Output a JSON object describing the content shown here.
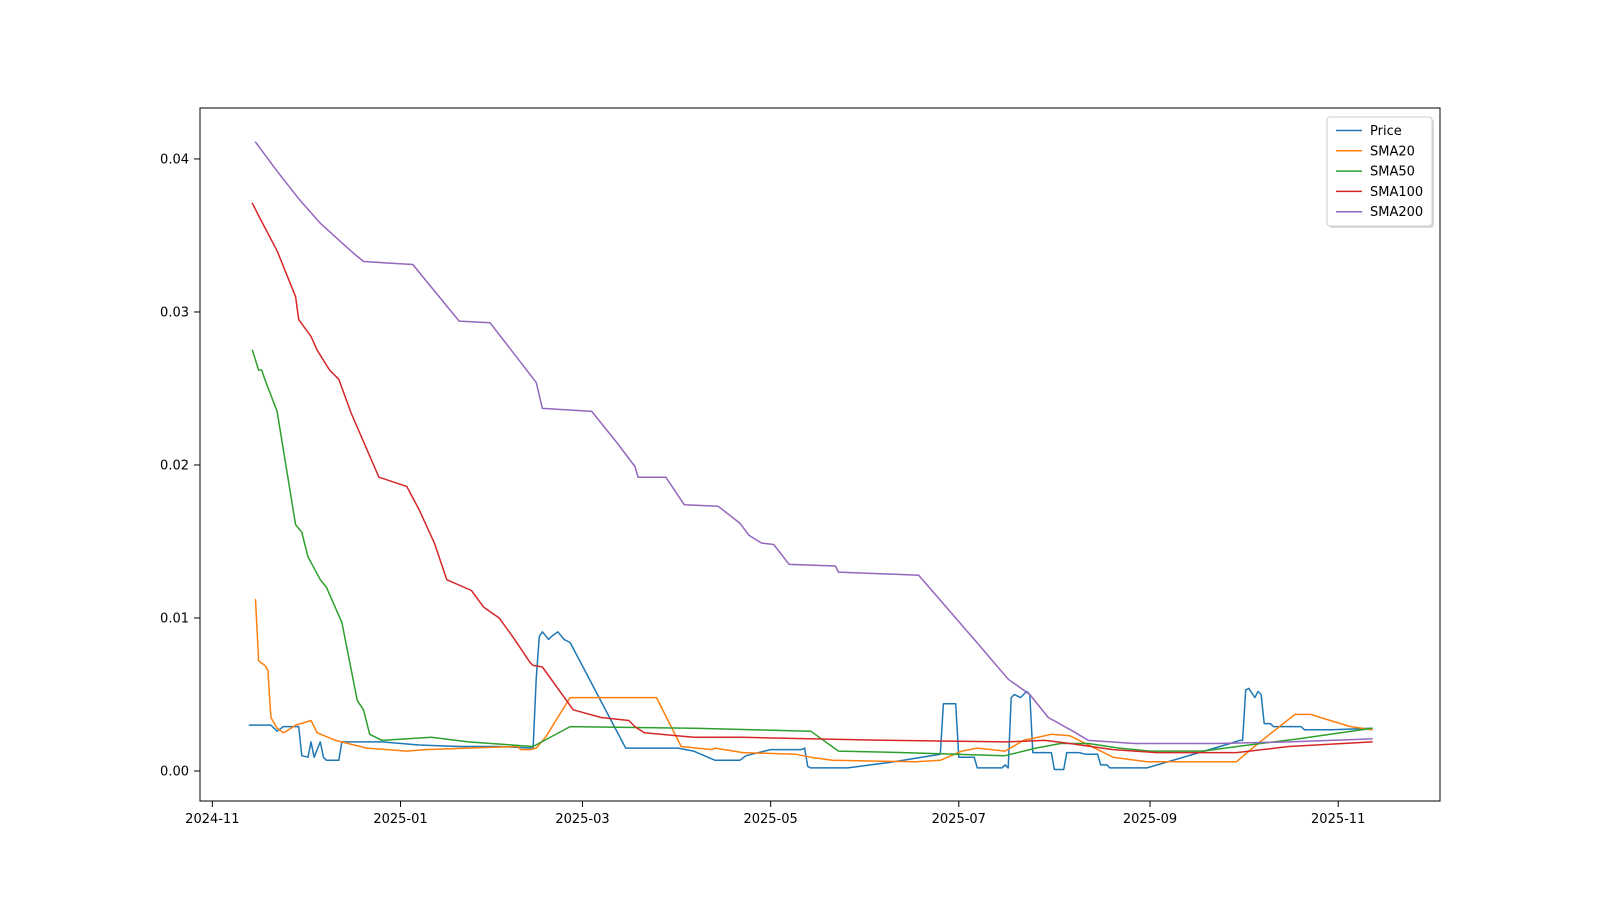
{
  "chart_data": {
    "type": "line",
    "title": "",
    "xlabel": "",
    "ylabel": "",
    "grid": false,
    "legend_position": "upper right",
    "x_axis": {
      "range": [
        "2024-10-28",
        "2025-12-04"
      ],
      "ticks": [
        {
          "date": "2024-11-01",
          "label": "2024-11"
        },
        {
          "date": "2025-01-01",
          "label": "2025-01"
        },
        {
          "date": "2025-03-01",
          "label": "2025-03"
        },
        {
          "date": "2025-05-01",
          "label": "2025-05"
        },
        {
          "date": "2025-07-01",
          "label": "2025-07"
        },
        {
          "date": "2025-09-01",
          "label": "2025-09"
        },
        {
          "date": "2025-11-01",
          "label": "2025-11"
        }
      ]
    },
    "y_axis": {
      "range": [
        -0.00196,
        0.04333
      ],
      "ticks": [
        {
          "value": 0.0,
          "label": "0.00"
        },
        {
          "value": 0.01,
          "label": "0.01"
        },
        {
          "value": 0.02,
          "label": "0.02"
        },
        {
          "value": 0.03,
          "label": "0.03"
        },
        {
          "value": 0.04,
          "label": "0.04"
        }
      ]
    },
    "series": [
      {
        "name": "Price",
        "color": "#1f77b4",
        "points": [
          [
            "2024-11-13",
            0.003
          ],
          [
            "2024-11-20",
            0.003
          ],
          [
            "2024-11-22",
            0.0026
          ],
          [
            "2024-11-24",
            0.0029
          ],
          [
            "2024-11-29",
            0.0029
          ],
          [
            "2024-11-30",
            0.001
          ],
          [
            "2024-12-02",
            0.0009
          ],
          [
            "2024-12-03",
            0.0019
          ],
          [
            "2024-12-04",
            0.0009
          ],
          [
            "2024-12-06",
            0.0019
          ],
          [
            "2024-12-07",
            0.0009
          ],
          [
            "2024-12-08",
            0.0007
          ],
          [
            "2024-12-12",
            0.0007
          ],
          [
            "2024-12-13",
            0.0019
          ],
          [
            "2024-12-26",
            0.0019
          ],
          [
            "2025-01-07",
            0.0017
          ],
          [
            "2025-01-20",
            0.0016
          ],
          [
            "2025-02-02",
            0.0016
          ],
          [
            "2025-02-13",
            0.0015
          ],
          [
            "2025-02-14",
            0.006
          ],
          [
            "2025-02-15",
            0.0088
          ],
          [
            "2025-02-16",
            0.0091
          ],
          [
            "2025-02-18",
            0.0086
          ],
          [
            "2025-02-19",
            0.0088
          ],
          [
            "2025-02-21",
            0.0091
          ],
          [
            "2025-02-23",
            0.0086
          ],
          [
            "2025-02-25",
            0.0084
          ],
          [
            "2025-03-15",
            0.0015
          ],
          [
            "2025-04-01",
            0.0015
          ],
          [
            "2025-04-06",
            0.0013
          ],
          [
            "2025-04-13",
            0.0007
          ],
          [
            "2025-04-21",
            0.0007
          ],
          [
            "2025-04-23",
            0.001
          ],
          [
            "2025-05-01",
            0.0014
          ],
          [
            "2025-05-11",
            0.0014
          ],
          [
            "2025-05-12",
            0.0015
          ],
          [
            "2025-05-13",
            0.0003
          ],
          [
            "2025-05-14",
            0.0002
          ],
          [
            "2025-05-26",
            0.0002
          ],
          [
            "2025-06-10",
            0.0006
          ],
          [
            "2025-06-25",
            0.0011
          ],
          [
            "2025-06-26",
            0.0044
          ],
          [
            "2025-06-30",
            0.0044
          ],
          [
            "2025-07-01",
            0.0009
          ],
          [
            "2025-07-06",
            0.0009
          ],
          [
            "2025-07-07",
            0.0002
          ],
          [
            "2025-07-15",
            0.0002
          ],
          [
            "2025-07-16",
            0.0004
          ],
          [
            "2025-07-17",
            0.0002
          ],
          [
            "2025-07-18",
            0.0048
          ],
          [
            "2025-07-19",
            0.005
          ],
          [
            "2025-07-21",
            0.0048
          ],
          [
            "2025-07-23",
            0.0052
          ],
          [
            "2025-07-24",
            0.005
          ],
          [
            "2025-07-25",
            0.0012
          ],
          [
            "2025-07-31",
            0.0012
          ],
          [
            "2025-08-01",
            0.0001
          ],
          [
            "2025-08-04",
            0.0001
          ],
          [
            "2025-08-05",
            0.0012
          ],
          [
            "2025-08-09",
            0.0012
          ],
          [
            "2025-08-11",
            0.0011
          ],
          [
            "2025-08-15",
            0.0011
          ],
          [
            "2025-08-16",
            0.0004
          ],
          [
            "2025-08-18",
            0.0004
          ],
          [
            "2025-08-19",
            0.0002
          ],
          [
            "2025-08-31",
            0.0002
          ],
          [
            "2025-09-27",
            0.0018
          ],
          [
            "2025-09-30",
            0.002
          ],
          [
            "2025-10-01",
            0.002
          ],
          [
            "2025-10-02",
            0.0053
          ],
          [
            "2025-10-03",
            0.0054
          ],
          [
            "2025-10-05",
            0.0048
          ],
          [
            "2025-10-06",
            0.0052
          ],
          [
            "2025-10-07",
            0.005
          ],
          [
            "2025-10-08",
            0.0031
          ],
          [
            "2025-10-10",
            0.0031
          ],
          [
            "2025-10-11",
            0.0029
          ],
          [
            "2025-10-20",
            0.0029
          ],
          [
            "2025-10-21",
            0.0027
          ],
          [
            "2025-10-30",
            0.0027
          ],
          [
            "2025-11-12",
            0.0028
          ]
        ]
      },
      {
        "name": "SMA20",
        "color": "#ff7f0e",
        "points": [
          [
            "2024-11-15",
            0.0112
          ],
          [
            "2024-11-16",
            0.0072
          ],
          [
            "2024-11-18",
            0.0069
          ],
          [
            "2024-11-19",
            0.0066
          ],
          [
            "2024-11-20",
            0.0035
          ],
          [
            "2024-11-22",
            0.0028
          ],
          [
            "2024-11-24",
            0.0025
          ],
          [
            "2024-11-25",
            0.0026
          ],
          [
            "2024-11-28",
            0.003
          ],
          [
            "2024-12-03",
            0.0033
          ],
          [
            "2024-12-05",
            0.0025
          ],
          [
            "2024-12-11",
            0.002
          ],
          [
            "2024-12-21",
            0.0015
          ],
          [
            "2025-01-03",
            0.0013
          ],
          [
            "2025-01-09",
            0.0014
          ],
          [
            "2025-01-23",
            0.0015
          ],
          [
            "2025-02-08",
            0.0016
          ],
          [
            "2025-02-09",
            0.0014
          ],
          [
            "2025-02-12",
            0.0014
          ],
          [
            "2025-02-14",
            0.0015
          ],
          [
            "2025-02-17",
            0.0022
          ],
          [
            "2025-02-25",
            0.0048
          ],
          [
            "2025-03-25",
            0.0048
          ],
          [
            "2025-04-02",
            0.0016
          ],
          [
            "2025-04-12",
            0.0014
          ],
          [
            "2025-04-13",
            0.0015
          ],
          [
            "2025-04-22",
            0.0012
          ],
          [
            "2025-05-09",
            0.0011
          ],
          [
            "2025-05-14",
            0.0009
          ],
          [
            "2025-05-21",
            0.0007
          ],
          [
            "2025-06-17",
            0.0006
          ],
          [
            "2025-06-25",
            0.0007
          ],
          [
            "2025-07-02",
            0.0013
          ],
          [
            "2025-07-07",
            0.0015
          ],
          [
            "2025-07-16",
            0.0013
          ],
          [
            "2025-07-22",
            0.002
          ],
          [
            "2025-07-31",
            0.0024
          ],
          [
            "2025-08-06",
            0.0023
          ],
          [
            "2025-08-20",
            0.0009
          ],
          [
            "2025-08-31",
            0.0006
          ],
          [
            "2025-09-29",
            0.0006
          ],
          [
            "2025-10-06",
            0.0018
          ],
          [
            "2025-10-18",
            0.0037
          ],
          [
            "2025-10-23",
            0.0037
          ],
          [
            "2025-10-31",
            0.0032
          ],
          [
            "2025-11-05",
            0.0029
          ],
          [
            "2025-11-12",
            0.0027
          ]
        ]
      },
      {
        "name": "SMA50",
        "color": "#2ca02c",
        "points": [
          [
            "2024-11-14",
            0.0275
          ],
          [
            "2024-11-16",
            0.0262
          ],
          [
            "2024-11-17",
            0.0262
          ],
          [
            "2024-11-18",
            0.0256
          ],
          [
            "2024-11-22",
            0.0235
          ],
          [
            "2024-11-28",
            0.0161
          ],
          [
            "2024-11-30",
            0.0156
          ],
          [
            "2024-12-02",
            0.014
          ],
          [
            "2024-12-06",
            0.0125
          ],
          [
            "2024-12-08",
            0.012
          ],
          [
            "2024-12-13",
            0.0097
          ],
          [
            "2024-12-18",
            0.0046
          ],
          [
            "2024-12-19",
            0.0043
          ],
          [
            "2024-12-20",
            0.004
          ],
          [
            "2024-12-22",
            0.0024
          ],
          [
            "2024-12-24",
            0.0022
          ],
          [
            "2024-12-26",
            0.002
          ],
          [
            "2025-01-11",
            0.0022
          ],
          [
            "2025-01-23",
            0.0019
          ],
          [
            "2025-02-13",
            0.0016
          ],
          [
            "2025-02-25",
            0.0029
          ],
          [
            "2025-04-06",
            0.0028
          ],
          [
            "2025-05-14",
            0.0026
          ],
          [
            "2025-05-23",
            0.0013
          ],
          [
            "2025-06-13",
            0.0012
          ],
          [
            "2025-07-16",
            0.001
          ],
          [
            "2025-07-26",
            0.0015
          ],
          [
            "2025-08-03",
            0.0018
          ],
          [
            "2025-08-12",
            0.0018
          ],
          [
            "2025-08-22",
            0.0015
          ],
          [
            "2025-09-01",
            0.0013
          ],
          [
            "2025-09-18",
            0.0013
          ],
          [
            "2025-10-03",
            0.0017
          ],
          [
            "2025-10-19",
            0.0021
          ],
          [
            "2025-11-12",
            0.0028
          ]
        ]
      },
      {
        "name": "SMA100",
        "color": "#d62728",
        "points": [
          [
            "2024-11-14",
            0.0371
          ],
          [
            "2024-11-16",
            0.0363
          ],
          [
            "2024-11-22",
            0.034
          ],
          [
            "2024-11-28",
            0.031
          ],
          [
            "2024-11-29",
            0.0295
          ],
          [
            "2024-12-03",
            0.0284
          ],
          [
            "2024-12-05",
            0.0275
          ],
          [
            "2024-12-09",
            0.0262
          ],
          [
            "2024-12-12",
            0.0256
          ],
          [
            "2024-12-16",
            0.0234
          ],
          [
            "2024-12-25",
            0.0192
          ],
          [
            "2025-01-03",
            0.0186
          ],
          [
            "2025-01-07",
            0.0171
          ],
          [
            "2025-01-12",
            0.0149
          ],
          [
            "2025-01-13",
            0.0143
          ],
          [
            "2025-01-16",
            0.0125
          ],
          [
            "2025-01-24",
            0.0118
          ],
          [
            "2025-01-28",
            0.0107
          ],
          [
            "2025-02-02",
            0.01
          ],
          [
            "2025-02-07",
            0.0086
          ],
          [
            "2025-02-12",
            0.0071
          ],
          [
            "2025-02-13",
            0.0069
          ],
          [
            "2025-02-16",
            0.0068
          ],
          [
            "2025-02-26",
            0.004
          ],
          [
            "2025-03-07",
            0.0035
          ],
          [
            "2025-03-16",
            0.0033
          ],
          [
            "2025-03-18",
            0.0029
          ],
          [
            "2025-03-21",
            0.0025
          ],
          [
            "2025-04-06",
            0.0022
          ],
          [
            "2025-04-22",
            0.0022
          ],
          [
            "2025-05-15",
            0.0021
          ],
          [
            "2025-06-10",
            0.002
          ],
          [
            "2025-07-16",
            0.0019
          ],
          [
            "2025-07-29",
            0.002
          ],
          [
            "2025-08-06",
            0.0018
          ],
          [
            "2025-08-20",
            0.0014
          ],
          [
            "2025-09-03",
            0.0012
          ],
          [
            "2025-09-29",
            0.0012
          ],
          [
            "2025-10-16",
            0.0016
          ],
          [
            "2025-11-12",
            0.0019
          ]
        ]
      },
      {
        "name": "SMA200",
        "color": "#9467bd",
        "points": [
          [
            "2024-11-15",
            0.0411
          ],
          [
            "2024-11-22",
            0.0392
          ],
          [
            "2024-11-29",
            0.0374
          ],
          [
            "2024-12-06",
            0.0358
          ],
          [
            "2024-12-12",
            0.0347
          ],
          [
            "2024-12-17",
            0.0338
          ],
          [
            "2024-12-20",
            0.0333
          ],
          [
            "2025-01-05",
            0.0331
          ],
          [
            "2025-01-20",
            0.0294
          ],
          [
            "2025-01-30",
            0.0293
          ],
          [
            "2025-02-14",
            0.0254
          ],
          [
            "2025-02-16",
            0.0237
          ],
          [
            "2025-03-04",
            0.0235
          ],
          [
            "2025-03-12",
            0.0215
          ],
          [
            "2025-03-18",
            0.0199
          ],
          [
            "2025-03-19",
            0.0192
          ],
          [
            "2025-03-28",
            0.0192
          ],
          [
            "2025-04-03",
            0.0174
          ],
          [
            "2025-04-14",
            0.0173
          ],
          [
            "2025-04-21",
            0.0162
          ],
          [
            "2025-04-24",
            0.0154
          ],
          [
            "2025-04-28",
            0.0149
          ],
          [
            "2025-05-02",
            0.0148
          ],
          [
            "2025-05-07",
            0.0135
          ],
          [
            "2025-05-22",
            0.0134
          ],
          [
            "2025-05-23",
            0.013
          ],
          [
            "2025-06-18",
            0.0128
          ],
          [
            "2025-07-06",
            0.0086
          ],
          [
            "2025-07-17",
            0.006
          ],
          [
            "2025-07-24",
            0.005
          ],
          [
            "2025-07-30",
            0.0035
          ],
          [
            "2025-08-07",
            0.0026
          ],
          [
            "2025-08-12",
            0.002
          ],
          [
            "2025-08-27",
            0.0018
          ],
          [
            "2025-09-23",
            0.0018
          ],
          [
            "2025-10-16",
            0.0019
          ],
          [
            "2025-11-12",
            0.0021
          ]
        ]
      }
    ],
    "colors": {
      "spine": "#000000",
      "background": "#ffffff",
      "legend_border": "#cccccc",
      "legend_shadow": "#aaaaaa",
      "text": "#000000"
    }
  }
}
